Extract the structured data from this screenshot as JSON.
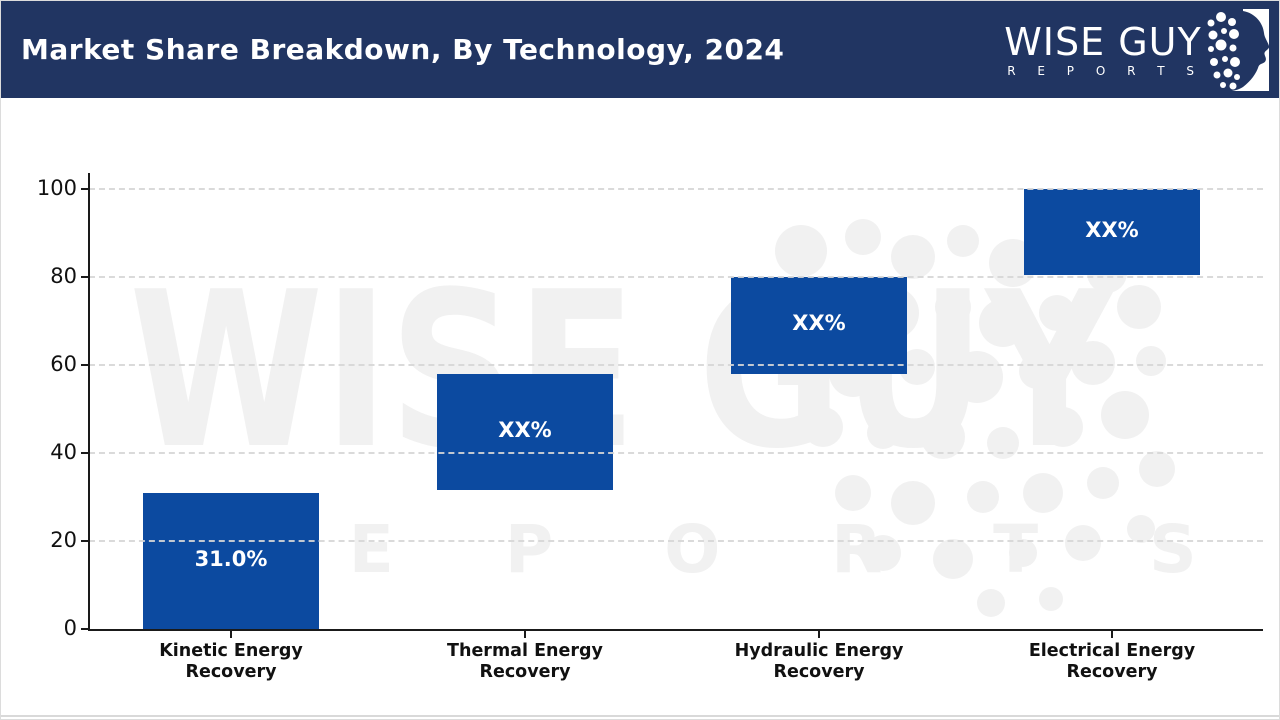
{
  "header": {
    "title": "Market Share Breakdown, By Technology, 2024",
    "logo": {
      "line1": "WISE GUY",
      "line2": "R E P O R T S"
    }
  },
  "watermark": {
    "line1": "WISE GUY",
    "line2": "R E P O R T S"
  },
  "colors": {
    "header_bg": "#213562",
    "bar_blue": "#0c4aa0",
    "grid_gray": "#d9d9d9",
    "axis_black": "#1a1a1a",
    "watermark_gray": "#f1f1f1",
    "bar_label_white": "#ffffff"
  },
  "chart_data": {
    "type": "bar",
    "subtype": "waterfall",
    "title": "Market Share Breakdown, By Technology, 2024",
    "categories": [
      "Kinetic Energy\nRecovery",
      "Thermal Energy\nRecovery",
      "Hydraulic Energy\nRecovery",
      "Electrical Energy\nRecovery"
    ],
    "segments": [
      {
        "category": "Kinetic Energy Recovery",
        "start": 0,
        "end": 31,
        "label": "31.0%"
      },
      {
        "category": "Thermal Energy Recovery",
        "start": 31.5,
        "end": 58,
        "label": "XX%"
      },
      {
        "category": "Hydraulic Energy Recovery",
        "start": 58,
        "end": 80,
        "label": "XX%"
      },
      {
        "category": "Electrical Energy Recovery",
        "start": 80.5,
        "end": 100,
        "label": "XX%"
      }
    ],
    "yticks": [
      0,
      20,
      40,
      60,
      80,
      100
    ],
    "ylim": [
      0,
      100
    ],
    "xlabel": "",
    "ylabel": "",
    "grid": "horizontal-dashed-over-bars",
    "legend": "none"
  }
}
